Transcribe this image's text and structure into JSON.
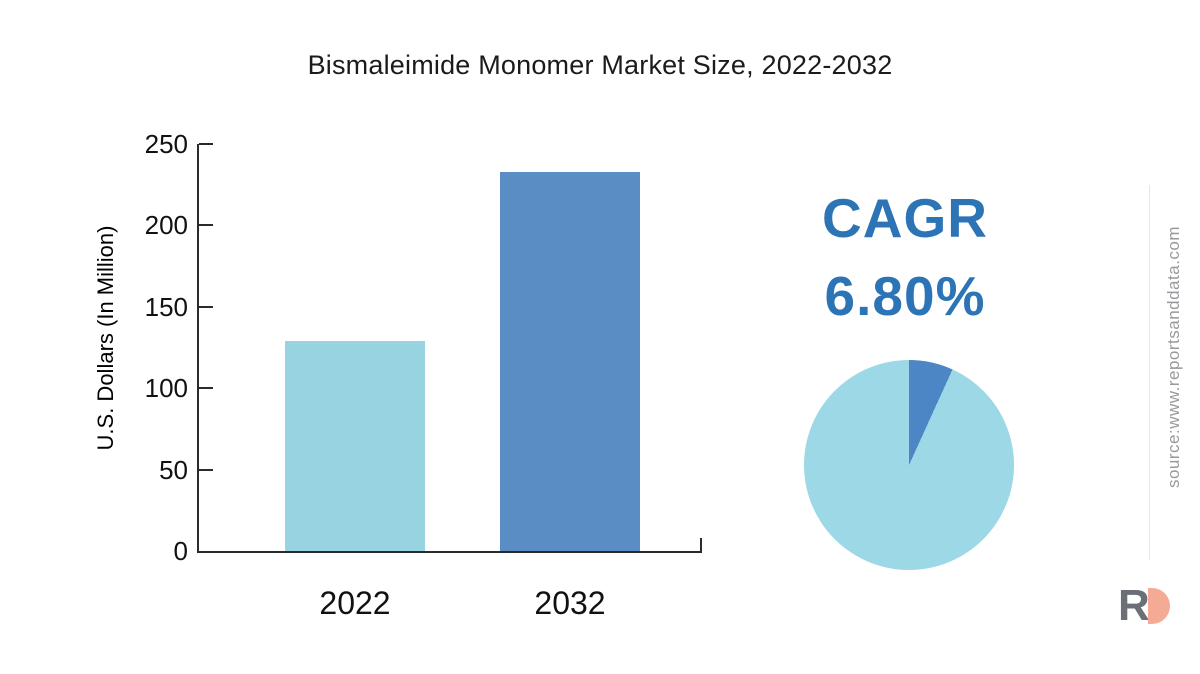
{
  "chart_data": {
    "type": "bar",
    "title": "Bismaleimide Monomer Market Size, 2022-2032",
    "categories": [
      "2022",
      "2032"
    ],
    "values": [
      129,
      233
    ],
    "xlabel": "",
    "ylabel": "U.S. Dollars (In Million)",
    "yticks": [
      0,
      50,
      100,
      150,
      200,
      250
    ],
    "ylim": [
      0,
      250
    ],
    "grid": false,
    "legend": "none",
    "bar_colors": [
      "#98d3e2",
      "#5b8dc5"
    ]
  },
  "cagr": {
    "label": "CAGR",
    "value": "6.80%",
    "percent": 6.8,
    "color": "#2d74b6"
  },
  "pie": {
    "wedge_percent": 6.8,
    "wedge_color": "#4d86c4",
    "main_color": "#9cd8e6"
  },
  "source": {
    "text": "source:www.reportsanddata.com"
  },
  "logo": {
    "letter": "R",
    "letter_color": "#6b7076",
    "disc_color": "#f3a58f"
  }
}
